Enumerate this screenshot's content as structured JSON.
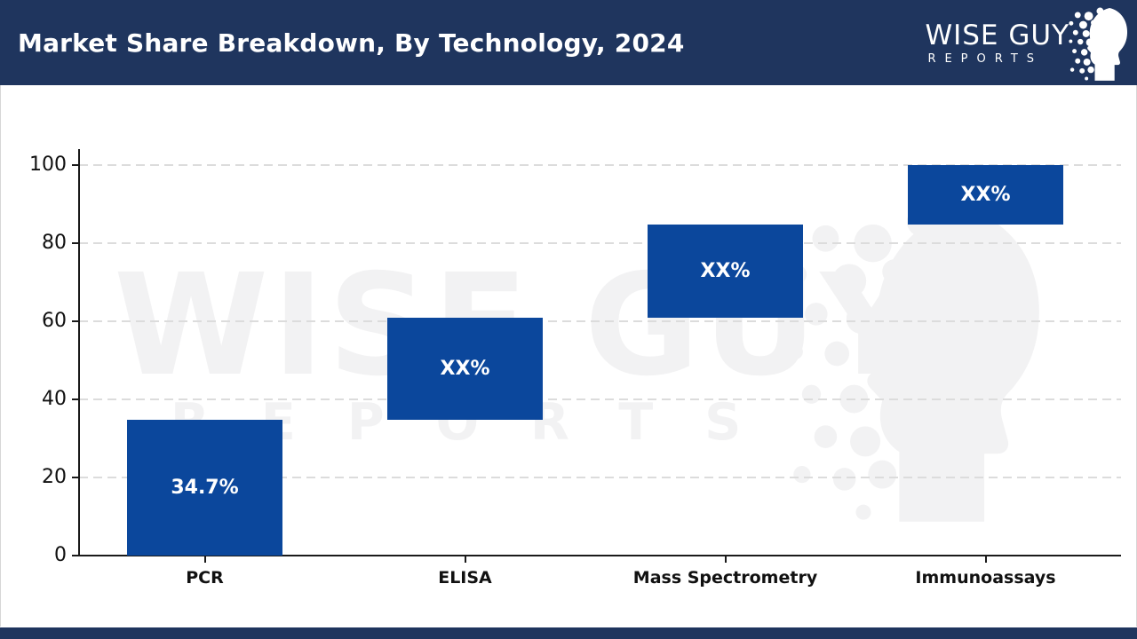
{
  "header": {
    "title": "Market Share Breakdown, By Technology, 2024",
    "logo": {
      "line1": "WISE GUY",
      "line2": "REPORTS"
    }
  },
  "watermark": {
    "line1": "WISE GUY",
    "line2": "REPORTS"
  },
  "colors": {
    "header_bg": "#1f355e",
    "footer_bg": "#1f355e",
    "bar": "#0b479c",
    "bar_label": "#ffffff",
    "axis": "#1a1a1a",
    "grid": "#dcdcdc",
    "watermark": "#f2f2f3",
    "title_text": "#ffffff"
  },
  "chart_data": {
    "type": "bar",
    "subtype": "waterfall",
    "title": "Market Share Breakdown, By Technology, 2024",
    "categories": [
      "PCR",
      "ELISA",
      "Mass Spectrometry",
      "Immunoassays"
    ],
    "series": [
      {
        "name": "Market share (%)",
        "segments": [
          {
            "category": "PCR",
            "start": 0,
            "end": 34.7,
            "label": "34.7%"
          },
          {
            "category": "ELISA",
            "start": 34.7,
            "end": 61,
            "label": "XX%"
          },
          {
            "category": "Mass Spectrometry",
            "start": 61,
            "end": 84.8,
            "label": "XX%"
          },
          {
            "category": "Immunoassays",
            "start": 84.8,
            "end": 100,
            "label": "XX%"
          }
        ]
      }
    ],
    "xlabel": "",
    "ylabel": "",
    "ylim": [
      0,
      100
    ],
    "yticks": [
      0,
      20,
      40,
      60,
      80,
      100
    ],
    "grid": "horizontal-dashed",
    "legend": "none"
  }
}
